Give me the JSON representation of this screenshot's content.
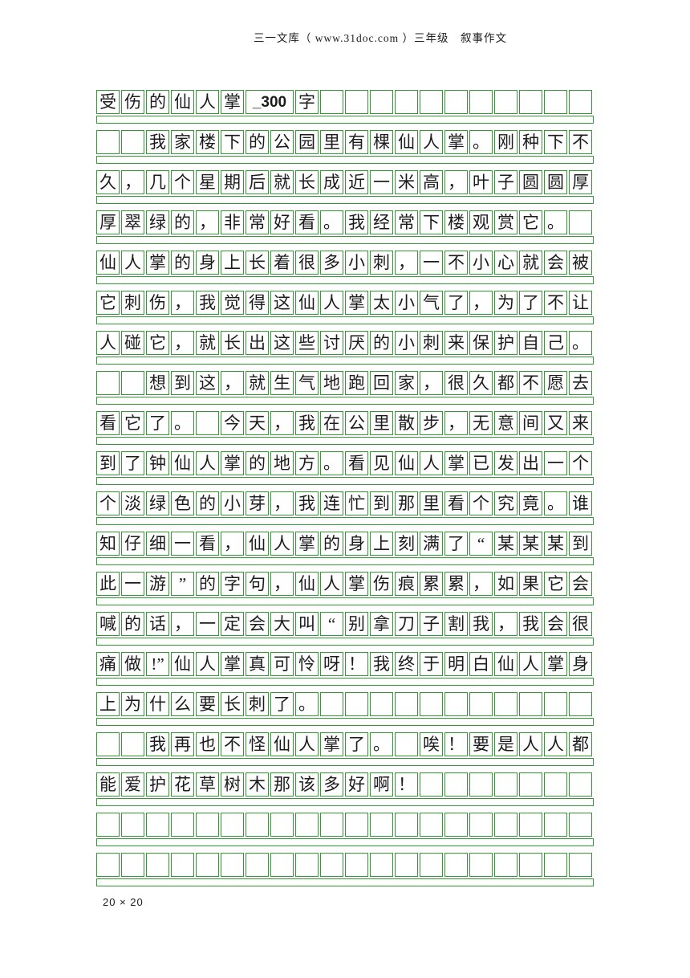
{
  "header": {
    "text": "三一文库（ www.31doc.com ）三年级　叙事作文"
  },
  "footer": {
    "grid_size_label": "20 × 20"
  },
  "colors": {
    "grid_green": "#339933",
    "text": "#1b1b1b"
  },
  "essay": {
    "title": "受伤的仙人掌_300字",
    "grid_columns": 20,
    "grid_rows_total": 20,
    "rows": [
      [
        "受",
        "伤",
        "的",
        "仙",
        "人",
        "掌",
        {
          "text": "_300",
          "span": 2
        },
        "字",
        "",
        "",
        "",
        "",
        "",
        "",
        "",
        "",
        "",
        "",
        ""
      ],
      [
        "",
        "",
        "我",
        "家",
        "楼",
        "下",
        "的",
        "公",
        "园",
        "里",
        "有",
        "棵",
        "仙",
        "人",
        "掌",
        "。",
        "刚",
        "种",
        "下",
        "不"
      ],
      [
        "久",
        "，",
        "几",
        "个",
        "星",
        "期",
        "后",
        "就",
        "长",
        "成",
        "近",
        "一",
        "米",
        "高",
        "，",
        "叶",
        "子",
        "圆",
        "圆",
        "厚"
      ],
      [
        "厚",
        "翠",
        "绿",
        "的",
        "，",
        "非",
        "常",
        "好",
        "看",
        "。",
        "我",
        "经",
        "常",
        "下",
        "楼",
        "观",
        "赏",
        "它",
        "。",
        ""
      ],
      [
        "仙",
        "人",
        "掌",
        "的",
        "身",
        "上",
        "长",
        "着",
        "很",
        "多",
        "小",
        "刺",
        "，",
        "一",
        "不",
        "小",
        "心",
        "就",
        "会",
        "被"
      ],
      [
        "它",
        "刺",
        "伤",
        "，",
        "我",
        "觉",
        "得",
        "这",
        "仙",
        "人",
        "掌",
        "太",
        "小",
        "气",
        "了",
        "，",
        "为",
        "了",
        "不",
        "让"
      ],
      [
        "人",
        "碰",
        "它",
        "，",
        "就",
        "长",
        "出",
        "这",
        "些",
        "讨",
        "厌",
        "的",
        "小",
        "刺",
        "来",
        "保",
        "护",
        "自",
        "己",
        "。"
      ],
      [
        "",
        "",
        "想",
        "到",
        "这",
        "，",
        "就",
        "生",
        "气",
        "地",
        "跑",
        "回",
        "家",
        "，",
        "很",
        "久",
        "都",
        "不",
        "愿",
        "去"
      ],
      [
        "看",
        "它",
        "了",
        "。",
        "",
        "今",
        "天",
        "，",
        "我",
        "在",
        "公",
        "里",
        "散",
        "步",
        "，",
        "无",
        "意",
        "间",
        "又",
        "来"
      ],
      [
        "到",
        "了",
        "钟",
        "仙",
        "人",
        "掌",
        "的",
        "地",
        "方",
        "。",
        "看",
        "见",
        "仙",
        "人",
        "掌",
        "已",
        "发",
        "出",
        "一",
        "个"
      ],
      [
        "个",
        "淡",
        "绿",
        "色",
        "的",
        "小",
        "芽",
        "，",
        "我",
        "连",
        "忙",
        "到",
        "那",
        "里",
        "看",
        "个",
        "究",
        "竟",
        "。",
        "谁"
      ],
      [
        "知",
        "仔",
        "细",
        "一",
        "看",
        "，",
        "仙",
        "人",
        "掌",
        "的",
        "身",
        "上",
        "刻",
        "满",
        "了",
        "“",
        "某",
        "某",
        "某",
        "到"
      ],
      [
        "此",
        "一",
        "游",
        "”",
        "的",
        "字",
        "句",
        "，",
        "仙",
        "人",
        "掌",
        "伤",
        "痕",
        "累",
        "累",
        "，",
        "如",
        "果",
        "它",
        "会"
      ],
      [
        "喊",
        "的",
        "话",
        "，",
        "一",
        "定",
        "会",
        "大",
        "叫",
        "“",
        "别",
        "拿",
        "刀",
        "子",
        "割",
        "我",
        "，",
        "我",
        "会",
        "很"
      ],
      [
        "痛",
        "做",
        "!”",
        "仙",
        "人",
        "掌",
        "真",
        "可",
        "怜",
        "呀",
        "！",
        "我",
        "终",
        "于",
        "明",
        "白",
        "仙",
        "人",
        "掌",
        "身"
      ],
      [
        "上",
        "为",
        "什",
        "么",
        "要",
        "长",
        "刺",
        "了",
        "。",
        "",
        "",
        "",
        "",
        "",
        "",
        "",
        "",
        "",
        "",
        ""
      ],
      [
        "",
        "",
        "我",
        "再",
        "也",
        "不",
        "怪",
        "仙",
        "人",
        "掌",
        "了",
        "。",
        "",
        "唉",
        "！",
        "要",
        "是",
        "人",
        "人",
        "都"
      ],
      [
        "能",
        "爱",
        "护",
        "花",
        "草",
        "树",
        "木",
        "那",
        "该",
        "多",
        "好",
        "啊",
        "！",
        "",
        "",
        "",
        "",
        "",
        "",
        ""
      ],
      [
        "",
        "",
        "",
        "",
        "",
        "",
        "",
        "",
        "",
        "",
        "",
        "",
        "",
        "",
        "",
        "",
        "",
        "",
        "",
        ""
      ],
      [
        "",
        "",
        "",
        "",
        "",
        "",
        "",
        "",
        "",
        "",
        "",
        "",
        "",
        "",
        "",
        "",
        "",
        "",
        "",
        ""
      ]
    ]
  }
}
